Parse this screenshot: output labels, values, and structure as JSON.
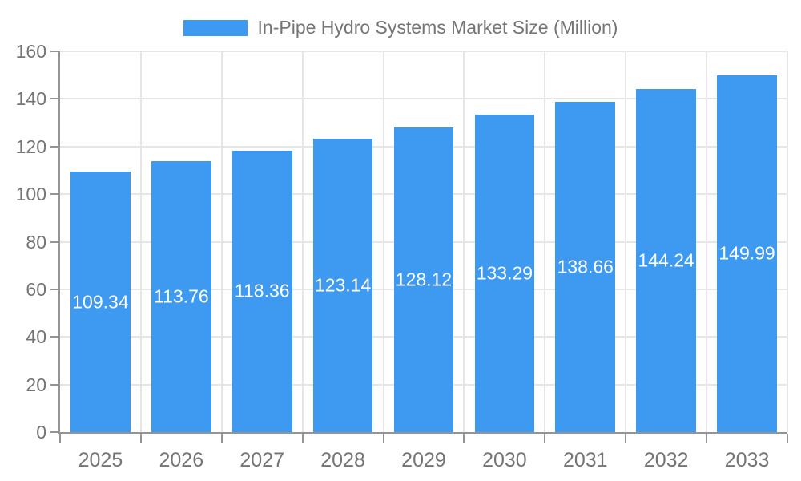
{
  "legend": {
    "label": "In-Pipe Hydro Systems Market Size (Million)"
  },
  "colors": {
    "bar": "#3d9af0",
    "axis_line": "#949494",
    "grid_line": "#e6e6e6",
    "tick_text": "#757575",
    "bar_label_text": "#ffffff",
    "background": "#ffffff"
  },
  "chart_data": {
    "type": "bar",
    "title": "In-Pipe Hydro Systems Market Size (Million)",
    "categories": [
      "2025",
      "2026",
      "2027",
      "2028",
      "2029",
      "2030",
      "2031",
      "2032",
      "2033"
    ],
    "values": [
      109.34,
      113.76,
      118.36,
      123.14,
      128.12,
      133.29,
      138.66,
      144.24,
      149.99
    ],
    "xlabel": "",
    "ylabel": "",
    "ylim": [
      0,
      160
    ],
    "yticks": [
      0,
      20,
      40,
      60,
      80,
      100,
      120,
      140,
      160
    ],
    "grid": true,
    "legend_position": "top",
    "bar_value_labels": true
  }
}
